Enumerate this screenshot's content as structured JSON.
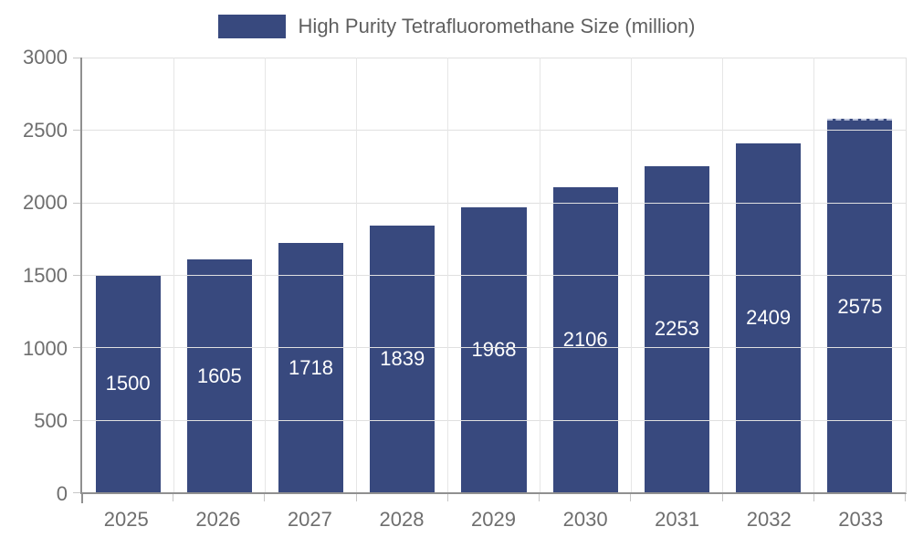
{
  "chart_data": {
    "type": "bar",
    "legend": "High Purity Tetrafluoromethane Size (million)",
    "categories": [
      "2025",
      "2026",
      "2027",
      "2028",
      "2029",
      "2030",
      "2031",
      "2032",
      "2033"
    ],
    "values": [
      1500,
      1605,
      1718,
      1839,
      1968,
      2106,
      2253,
      2409,
      2575
    ],
    "ylim": [
      0,
      3000
    ],
    "yticks": [
      0,
      500,
      1000,
      1500,
      2000,
      2500,
      3000
    ],
    "grid": true,
    "legend_position": "top-center",
    "value_labels": "inside-center",
    "dashed_top_bar_index": 8,
    "colors": {
      "bar": "#38497e",
      "bar_value_text": "#ffffff",
      "axis_label": "#6e6e6e",
      "legend_text": "#5f5f5f",
      "gridline": "#e0e0e0",
      "axis_line": "#909090"
    }
  }
}
